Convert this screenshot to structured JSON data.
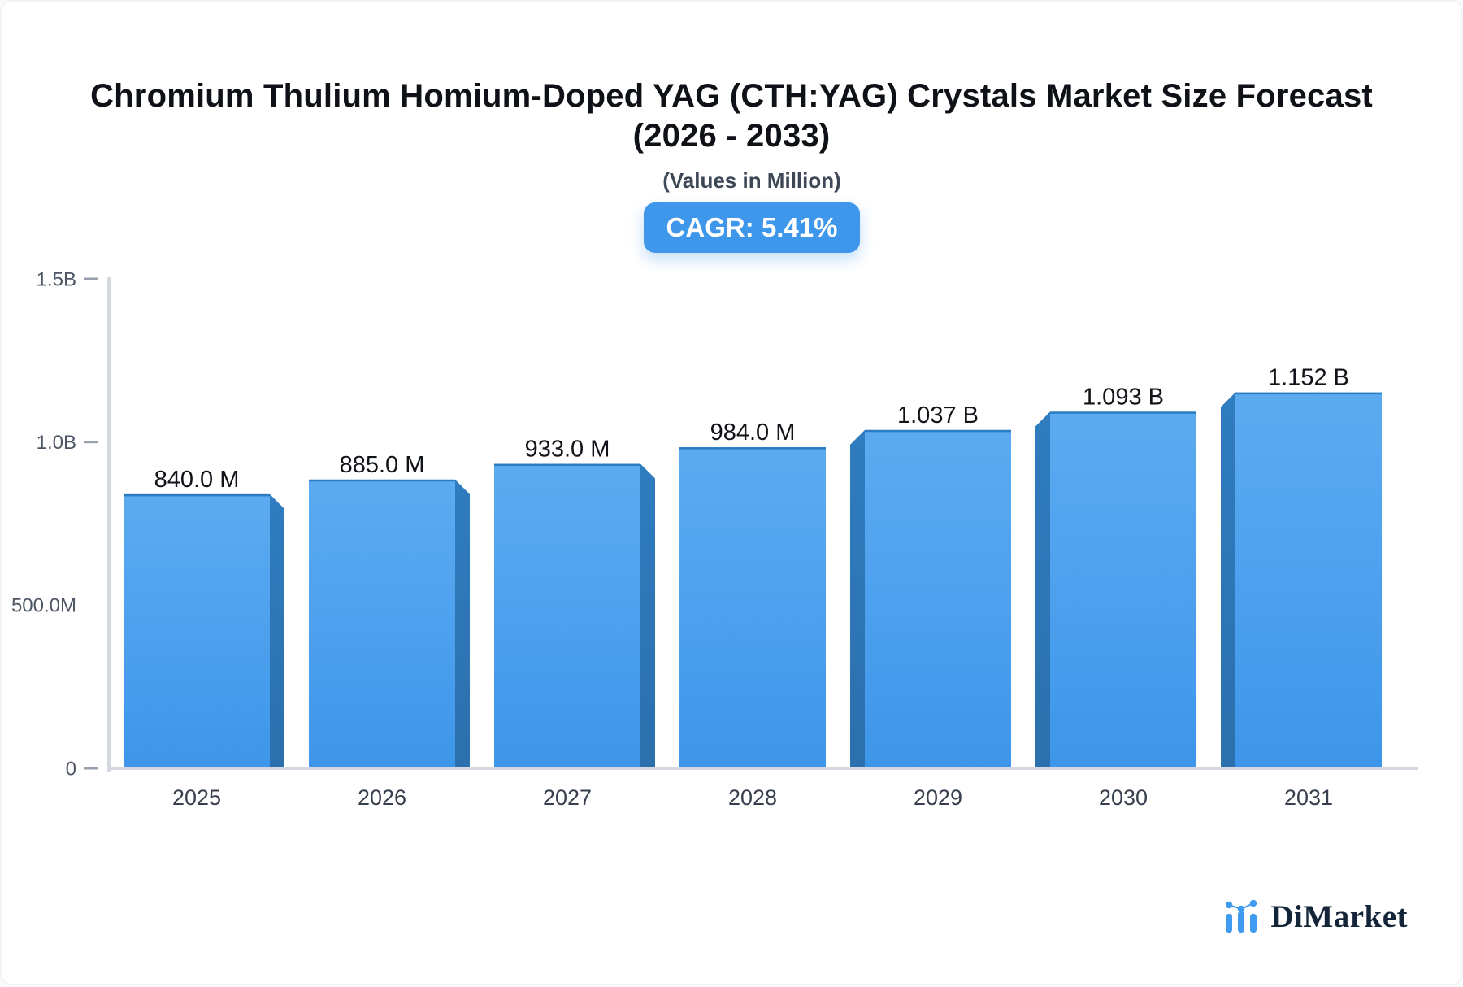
{
  "header": {
    "title_line1": "Chromium Thulium Homium-Doped YAG (CTH:YAG) Crystals Market Size Forecast",
    "title_line2": "(2026 - 2033)",
    "subtitle": "(Values in Million)",
    "cagr_badge": "CAGR: 5.41%"
  },
  "chart_data": {
    "type": "bar",
    "title": "Chromium Thulium Homium-Doped YAG (CTH:YAG) Crystals Market Size Forecast (2026 - 2033)",
    "subtitle": "(Values in Million)",
    "cagr_percent": 5.41,
    "categories": [
      "2025",
      "2026",
      "2027",
      "2028",
      "2029",
      "2030",
      "2031"
    ],
    "values": [
      840,
      885,
      933,
      984,
      1037,
      1093,
      1152
    ],
    "value_labels": [
      "840.0 M",
      "885.0 M",
      "933.0 M",
      "984.0 M",
      "1.037 B",
      "1.093 B",
      "1.152 B"
    ],
    "xlabel": "",
    "ylabel": "",
    "ylim": [
      0,
      1500
    ],
    "yticks": [
      {
        "label": "1.5B",
        "value": 1500,
        "dash": true
      },
      {
        "label": "1.0B",
        "value": 1000,
        "dash": true
      },
      {
        "label": "500.0M",
        "value": 500,
        "dash": false
      },
      {
        "label": "0",
        "value": 0,
        "dash": true
      }
    ],
    "grid": false,
    "legend": "none"
  },
  "colors": {
    "bar_face_top": "#5cabf1",
    "bar_face_bottom": "#3e96ea",
    "bar_side_top": "#2f7cbf",
    "bar_side_bottom": "#2c70ad",
    "bar_top_edge": "#2b7cc1",
    "axis": "#d5d9df",
    "tick_dash": "#9aa1ae",
    "tick_label": "#4e5665",
    "year_label": "#373e4d",
    "value_label": "#101318",
    "badge_bg": "#3e97ea",
    "logo_blue": "#3f9bf0",
    "logo_navy": "#14253a"
  },
  "logo": {
    "text": "DiMarket"
  }
}
